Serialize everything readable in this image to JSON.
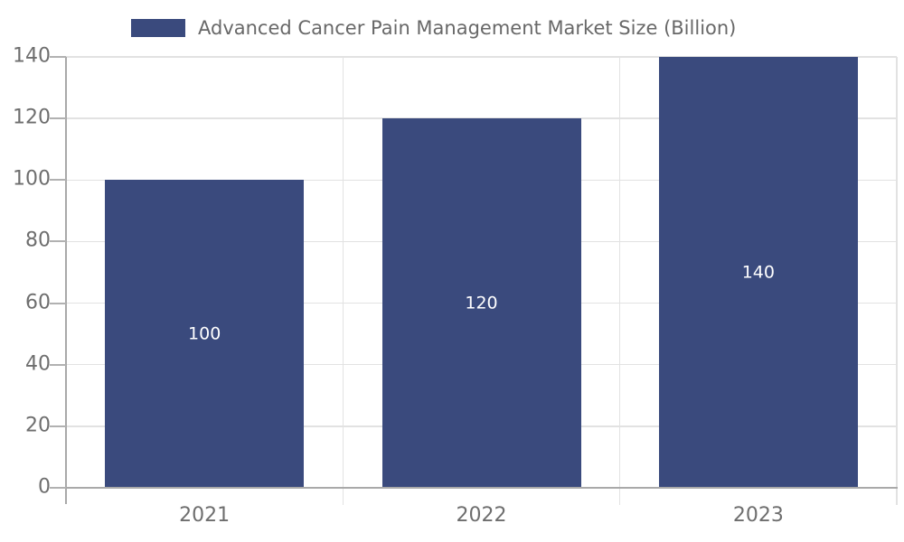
{
  "chart_data": {
    "type": "bar",
    "title": "Advanced Cancer Pain Management Market Size (Billion)",
    "legend": {
      "label": "Advanced Cancer Pain Management Market Size (Billion)",
      "position": "top-center"
    },
    "categories": [
      "2021",
      "2022",
      "2023"
    ],
    "values": [
      100,
      120,
      140
    ],
    "value_labels": [
      "100",
      "120",
      "140"
    ],
    "value_label_position": "inside-center",
    "xlabel": "",
    "ylabel": "",
    "ylim": [
      0,
      140
    ],
    "yticks": [
      0,
      20,
      40,
      60,
      80,
      100,
      120,
      140
    ],
    "grid": true,
    "colors": {
      "bar": "#3A4A7D",
      "value_label": "#ffffff",
      "axis_line": "#a9a9a9",
      "gridline": "#e2e2e2",
      "tick_label": "#6e6e6e",
      "legend_text": "#686868",
      "background": "#ffffff"
    }
  }
}
